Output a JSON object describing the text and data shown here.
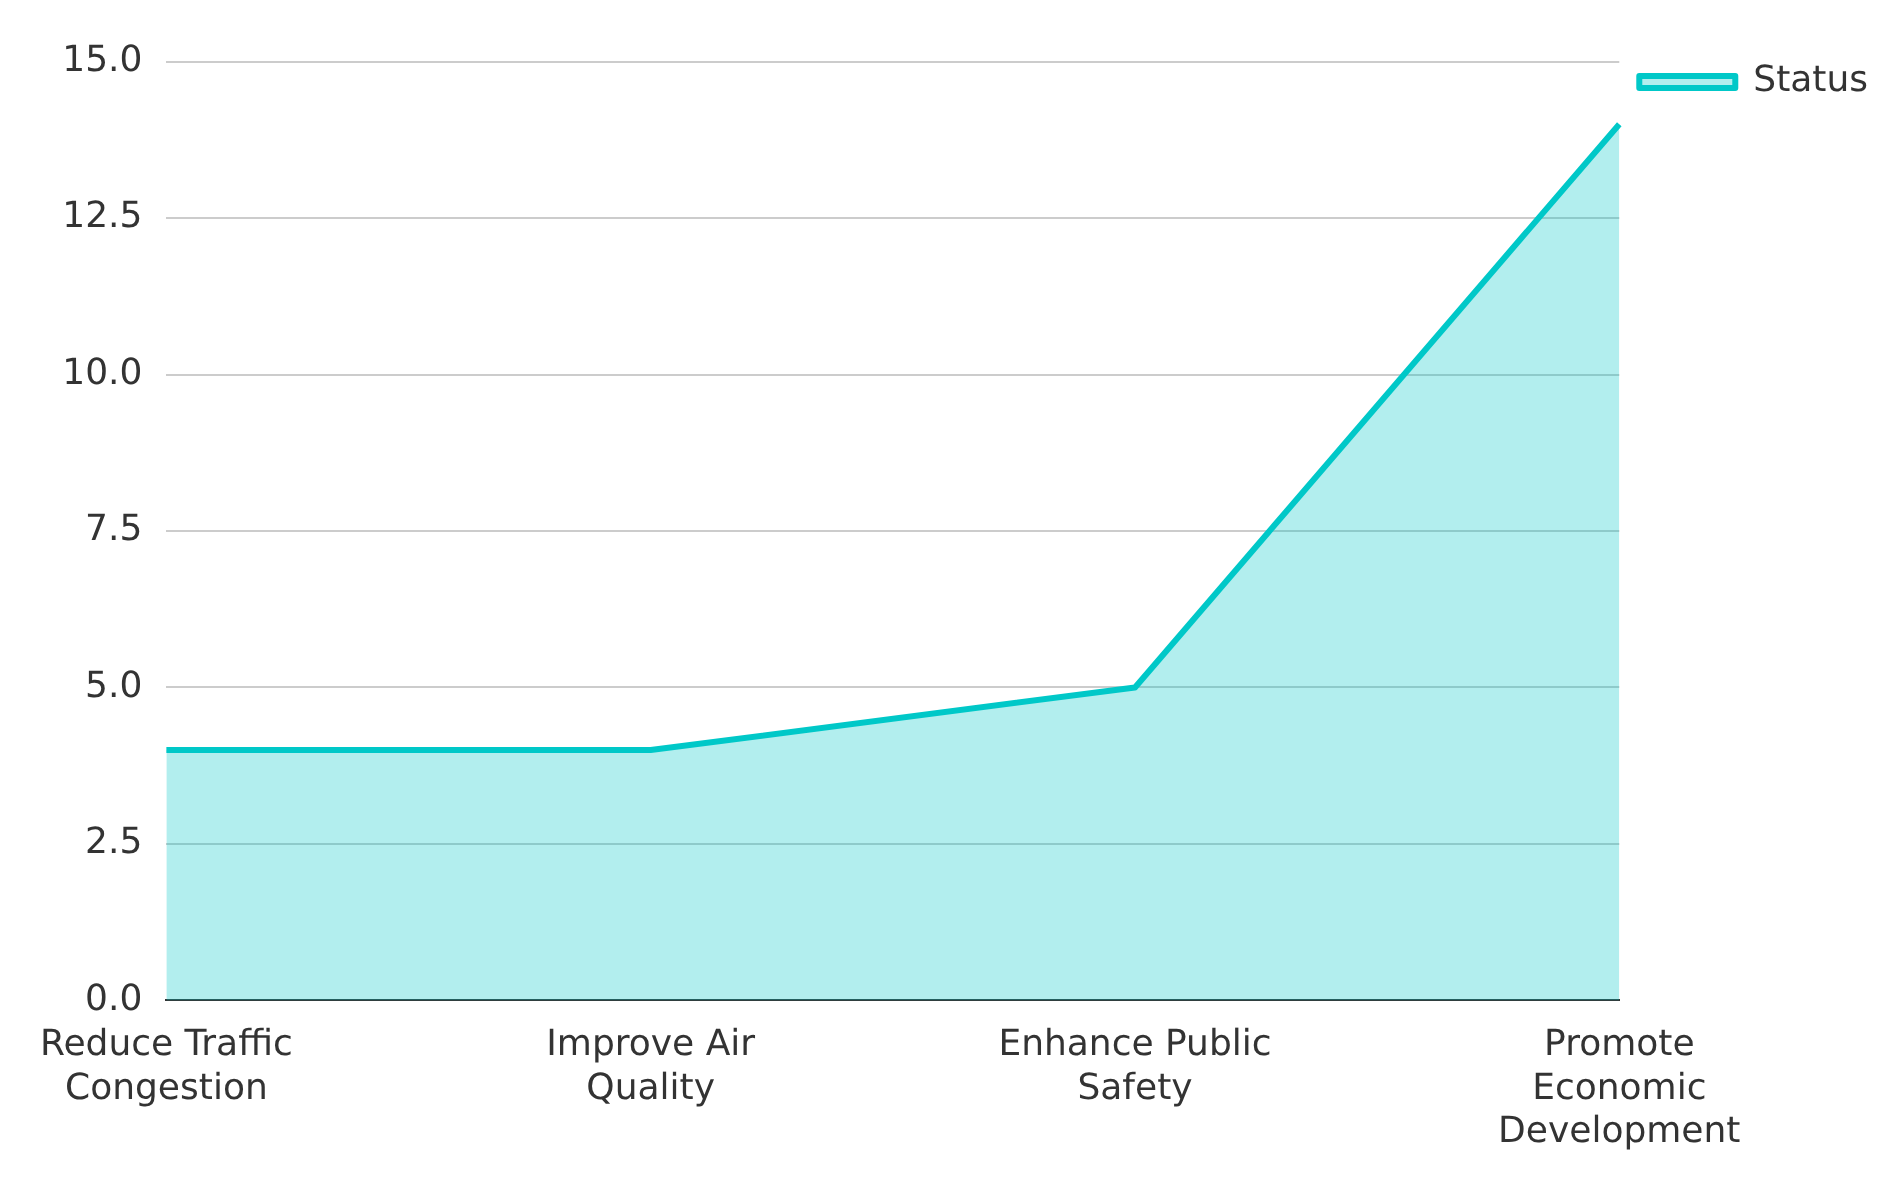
{
  "chart_data": {
    "type": "area",
    "categories": [
      "Reduce Traffic Congestion",
      "Improve Air Quality",
      "Enhance Public Safety",
      "Promote Economic Development"
    ],
    "series": [
      {
        "name": "Status",
        "color": "#00c8c8",
        "values": [
          4,
          4,
          5,
          14
        ]
      }
    ],
    "ylim": [
      0,
      15
    ],
    "yticks": [
      {
        "value": 0,
        "label": "0.0"
      },
      {
        "value": 2.5,
        "label": "2.5"
      },
      {
        "value": 5,
        "label": "5.0"
      },
      {
        "value": 7.5,
        "label": "7.5"
      },
      {
        "value": 10,
        "label": "10.0"
      },
      {
        "value": 12.5,
        "label": "12.5"
      },
      {
        "value": 15,
        "label": "15.0"
      }
    ],
    "grid": "y",
    "legend": "top right"
  }
}
